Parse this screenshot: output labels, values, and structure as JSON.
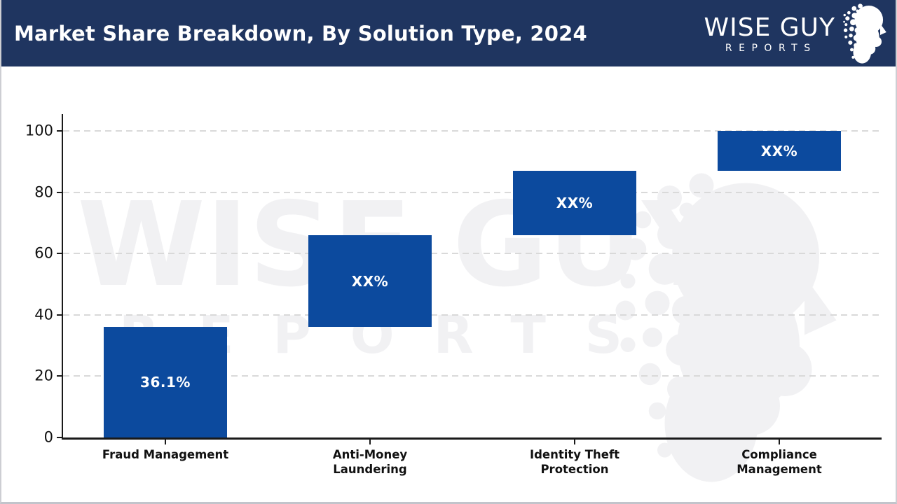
{
  "header": {
    "title": "Market Share Breakdown, By Solution Type, 2024",
    "logo": {
      "brand": "WISE GUY",
      "sub": "REPORTS"
    }
  },
  "watermark": {
    "brand": "WISE GUY",
    "sub": "REPORTS"
  },
  "chart_data": {
    "type": "bar",
    "subtype": "waterfall",
    "title": "Market Share Breakdown, By Solution Type, 2024",
    "categories": [
      "Fraud Management",
      "Anti-Money\nLaundering",
      "Identity Theft\nProtection",
      "Compliance\nManagement"
    ],
    "segments": [
      {
        "category": "Fraud Management",
        "start": 0,
        "end": 36.1,
        "label": "36.1%"
      },
      {
        "category": "Anti-Money Laundering",
        "start": 36.1,
        "end": 65.9,
        "label": "XX%"
      },
      {
        "category": "Identity Theft Protection",
        "start": 65.9,
        "end": 86.9,
        "label": "XX%"
      },
      {
        "category": "Compliance Management",
        "start": 86.9,
        "end": 100,
        "label": "XX%"
      }
    ],
    "y_ticks": [
      0,
      20,
      40,
      60,
      80,
      100
    ],
    "ylim": [
      0,
      105
    ],
    "xlabel": "",
    "ylabel": "",
    "grid": true,
    "legend": "none",
    "bar_color": "#0c4a9e",
    "bar_label_color": "#ffffff",
    "gridline_color": "#d9d9d9",
    "axis_color": "#1a1a1a",
    "header_color": "#1f3560",
    "watermark_color": "#f1f1f3"
  }
}
